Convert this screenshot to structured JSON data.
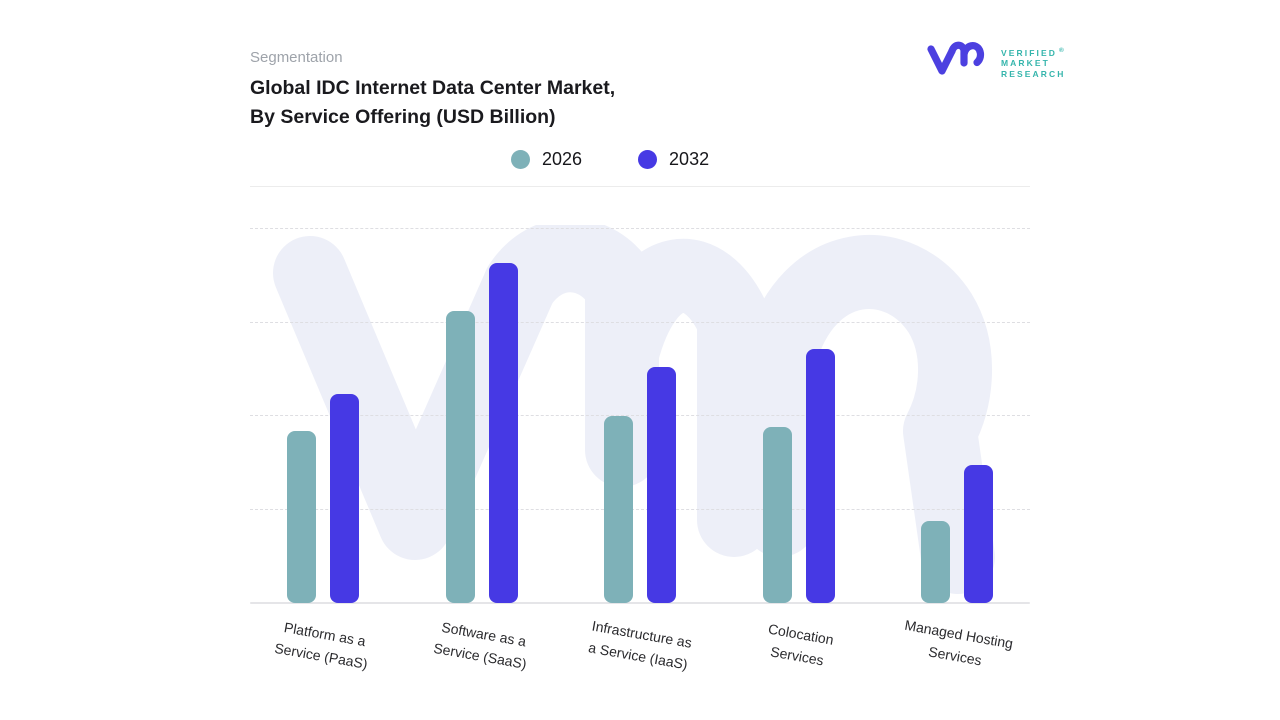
{
  "header": {
    "eyebrow": "Segmentation",
    "title_line1": "Global IDC Internet Data Center Market,",
    "title_line2": "By Service Offering (USD Billion)"
  },
  "logo": {
    "brand_lines": [
      "VERIFIED",
      "MARKET",
      "RESEARCH"
    ],
    "registered_mark": "®",
    "monogram_color": "#4C40E0",
    "wordmark_color": "#35B5AC"
  },
  "legend": [
    {
      "label": "2026",
      "color": "#7EB1B8"
    },
    {
      "label": "2032",
      "color": "#4639E4"
    }
  ],
  "chart_data": {
    "type": "bar",
    "title": "Global IDC Internet Data Center Market, By Service Offering (USD Billion)",
    "categories": [
      "Platform as a\nService (PaaS)",
      "Software as a\nService (SaaS)",
      "Infrastructure as\na Service (IaaS)",
      "Colocation\nServices",
      "Managed Hosting\nServices"
    ],
    "series": [
      {
        "name": "2026",
        "color": "#7EB1B8",
        "values": [
          46,
          78,
          50,
          47,
          22
        ]
      },
      {
        "name": "2032",
        "color": "#4639E4",
        "values": [
          56,
          91,
          63,
          68,
          37
        ]
      }
    ],
    "xlabel": "",
    "ylabel": "",
    "ylim": [
      0,
      120
    ],
    "y_axis_labels_visible": false,
    "y_gridlines": [
      25,
      50,
      75,
      100
    ],
    "grid": "dashed horizontal",
    "legend_position": "top",
    "value_scale_note": "no numeric axis shown in image; values estimated relative to top gridline = 100",
    "watermark_color": "#EDEFF8"
  }
}
